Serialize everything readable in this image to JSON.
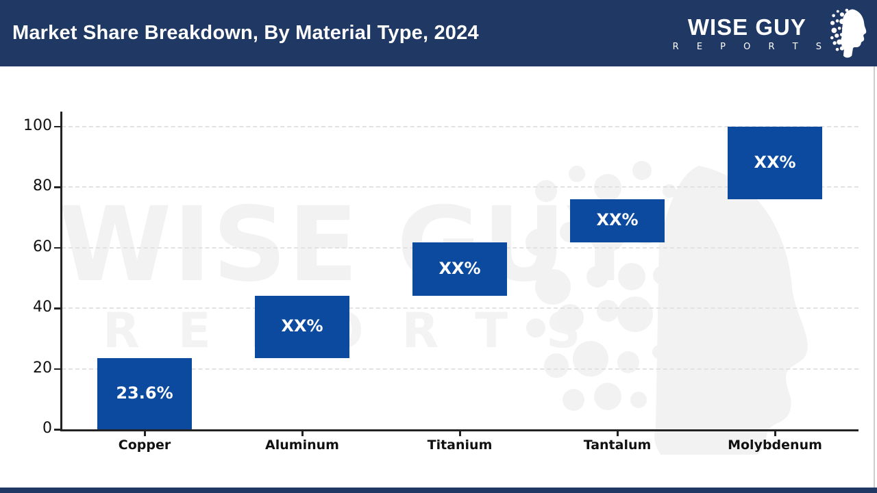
{
  "header": {
    "title": "Market Share Breakdown, By Material Type, 2024",
    "logo": {
      "line1": "WISE GUY",
      "line2": "R E P O R T S"
    }
  },
  "watermark": {
    "line1": "WISE GUY",
    "line2": "REPORTS"
  },
  "colors": {
    "header_bg": "#1f3864",
    "footer_bg": "#1f3864",
    "bar": "#0b4a9e",
    "bar_label": "#ffffff",
    "grid": "#e2e2e2",
    "axis": "#222222",
    "watermark": "#f2f2f2"
  },
  "chart_data": {
    "type": "bar",
    "subtype": "waterfall",
    "title": "",
    "xlabel": "",
    "ylabel": "",
    "grid": "horizontal-dashed",
    "legend": "none",
    "ylim": [
      0,
      105
    ],
    "yticks": [
      0,
      20,
      40,
      60,
      80,
      100
    ],
    "categories": [
      "Copper",
      "Aluminum",
      "Titanium",
      "Tantalum",
      "Molybdenum"
    ],
    "segments": [
      {
        "category": "Copper",
        "start": 0,
        "end": 23.6,
        "label": "23.6%"
      },
      {
        "category": "Aluminum",
        "start": 23.6,
        "end": 44.1,
        "label": "XX%"
      },
      {
        "category": "Titanium",
        "start": 44.1,
        "end": 61.8,
        "label": "XX%"
      },
      {
        "category": "Tantalum",
        "start": 61.8,
        "end": 76.1,
        "label": "XX%"
      },
      {
        "category": "Molybdenum",
        "start": 76.1,
        "end": 100,
        "label": "XX%"
      }
    ]
  }
}
